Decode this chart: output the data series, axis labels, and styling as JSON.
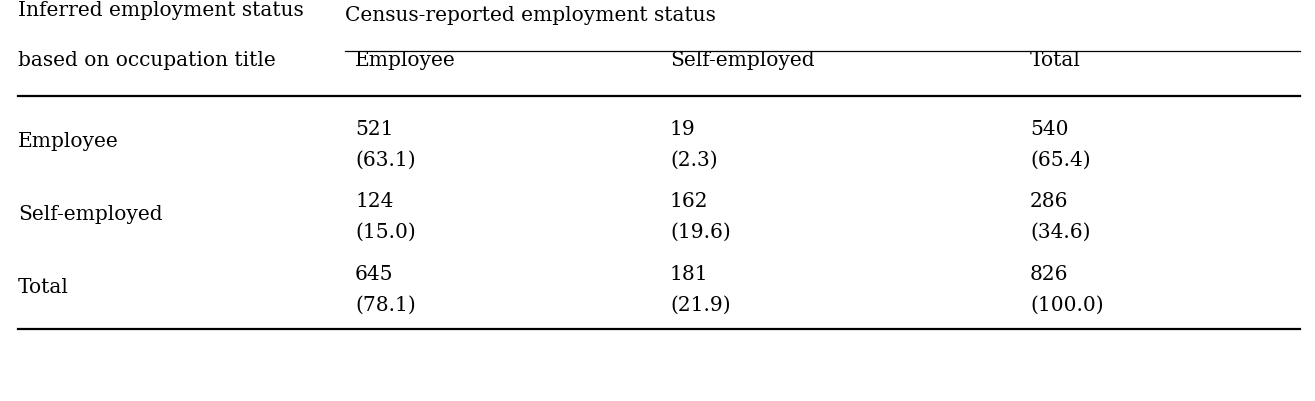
{
  "header_group": "Census-reported employment status",
  "row_label_line1": "Inferred employment status",
  "row_label_line2": "based on occupation title",
  "col_headers": [
    "Employee",
    "Self-employed",
    "Total"
  ],
  "row_labels": [
    "Employee",
    "Self-employed",
    "Total"
  ],
  "cell_data": [
    [
      [
        "521",
        "(63.1)"
      ],
      [
        "19",
        "(2.3)"
      ],
      [
        "540",
        "(65.4)"
      ]
    ],
    [
      [
        "124",
        "(15.0)"
      ],
      [
        "162",
        "(19.6)"
      ],
      [
        "286",
        "(34.6)"
      ]
    ],
    [
      [
        "645",
        "(78.1)"
      ],
      [
        "181",
        "(21.9)"
      ],
      [
        "826",
        "(100.0)"
      ]
    ]
  ],
  "bg_color": "#ffffff",
  "text_color": "#000000",
  "font_size": 14.5,
  "figsize": [
    13.15,
    4.02
  ],
  "dpi": 100
}
